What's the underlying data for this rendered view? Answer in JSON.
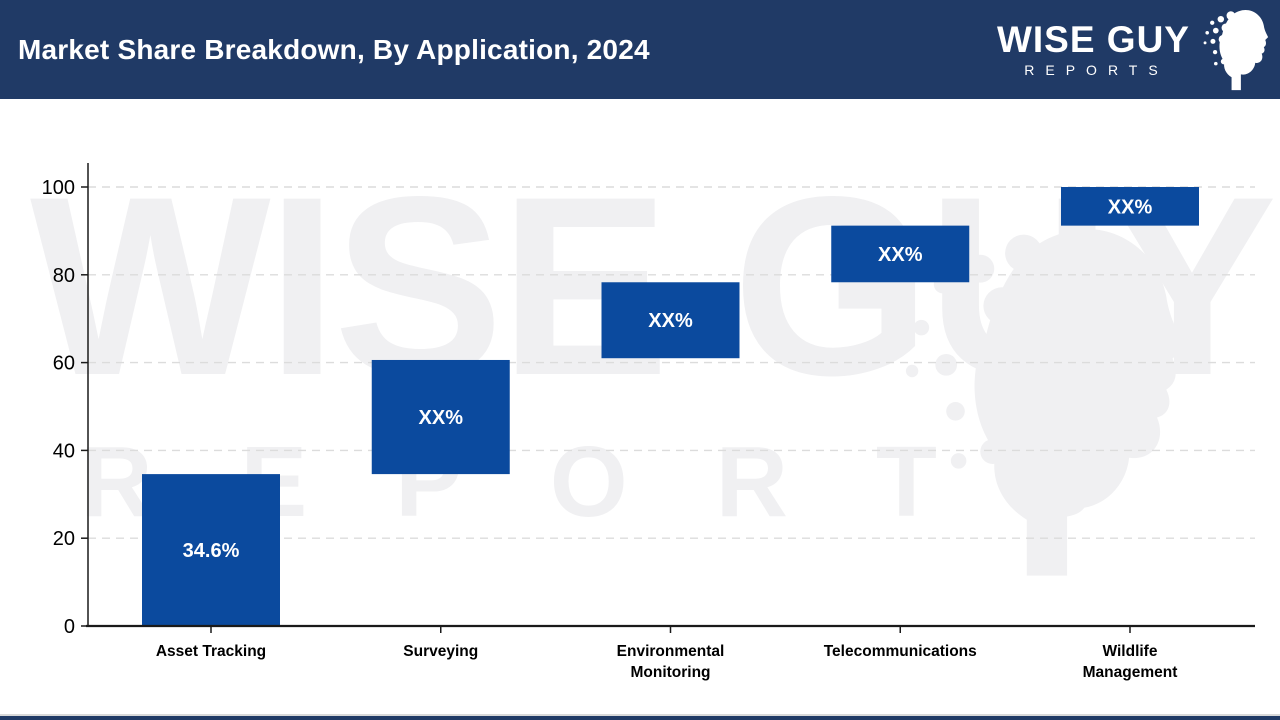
{
  "header": {
    "title": "Market Share Breakdown, By Application, 2024",
    "logo": {
      "line1": "WISE GUY",
      "line2": "REPORTS"
    }
  },
  "watermark": {
    "line1": "WISE GUY",
    "line2": "REPORTS"
  },
  "colors": {
    "header_bg": "#203a66",
    "bar_color": "#0b4a9e",
    "bar_label_color": "#ffffff",
    "grid_color": "#dcdcdc",
    "axis_color": "#1a1a1a",
    "tick_label_color": "#000000",
    "watermark_color": "#f0f0f2"
  },
  "chart_data": {
    "type": "bar",
    "subtype": "waterfall",
    "title": "Market Share Breakdown, By Application, 2024",
    "categories": [
      "Asset Tracking",
      "Surveying",
      "Environmental Monitoring",
      "Telecommunications",
      "Wildlife Management"
    ],
    "category_label_lines": [
      [
        "Asset Tracking"
      ],
      [
        "Surveying"
      ],
      [
        "Environmental",
        "Monitoring"
      ],
      [
        "Telecommunications"
      ],
      [
        "Wildlife",
        "Management"
      ]
    ],
    "segments": [
      {
        "category": "Asset Tracking",
        "start": 0,
        "end": 34.6,
        "label": "34.6%"
      },
      {
        "category": "Surveying",
        "start": 34.6,
        "end": 60.6,
        "label": "XX%"
      },
      {
        "category": "Environmental Monitoring",
        "start": 61.0,
        "end": 78.3,
        "label": "XX%"
      },
      {
        "category": "Telecommunications",
        "start": 78.3,
        "end": 91.2,
        "label": "XX%"
      },
      {
        "category": "Wildlife Management",
        "start": 91.2,
        "end": 100,
        "label": "XX%"
      }
    ],
    "ylim": [
      0,
      100
    ],
    "yticks": [
      0,
      20,
      40,
      60,
      80,
      100
    ],
    "grid": "horizontal-dashed",
    "legend": "none",
    "xlabel": "",
    "ylabel": ""
  }
}
